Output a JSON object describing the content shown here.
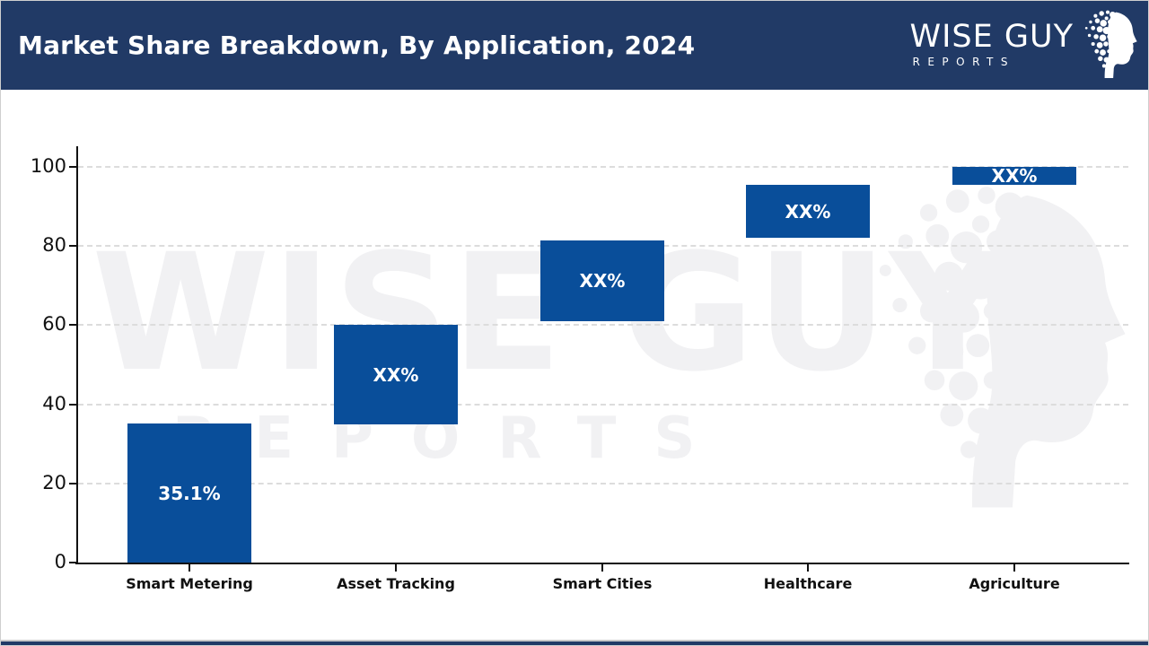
{
  "header": {
    "title": "Market Share Breakdown, By Application, 2024",
    "logo": {
      "line1": "WISE GUY",
      "line2": "REPORTS"
    }
  },
  "watermark": {
    "line1": "WISE GUY",
    "line2": "REPORTS"
  },
  "colors": {
    "header_bg": "#213a66",
    "footer_bg": "#213a66",
    "bar": "#094e9a",
    "bar_label": "#ffffff",
    "watermark": "#f1f1f3",
    "gridline": "#dcdcdc",
    "axis": "#111111"
  },
  "chart_data": {
    "type": "bar",
    "subtype": "waterfall",
    "title": "Market Share Breakdown, By Application, 2024",
    "xlabel": "",
    "ylabel": "",
    "ylim": [
      0,
      105
    ],
    "yticks": [
      0,
      20,
      40,
      60,
      80,
      100
    ],
    "grid": "horizontal-dashed",
    "legend": "none",
    "bar_color": "#094e9a",
    "categories": [
      "Smart Metering",
      "Asset Tracking",
      "Smart Cities",
      "Healthcare",
      "Agriculture"
    ],
    "segments": [
      {
        "category": "Smart Metering",
        "start": 0,
        "end": 35.1,
        "label": "35.1%"
      },
      {
        "category": "Asset Tracking",
        "start": 35,
        "end": 60,
        "label": "XX%"
      },
      {
        "category": "Smart Cities",
        "start": 61,
        "end": 81.5,
        "label": "XX%"
      },
      {
        "category": "Healthcare",
        "start": 82,
        "end": 95.5,
        "label": "XX%"
      },
      {
        "category": "Agriculture",
        "start": 95.5,
        "end": 100,
        "label": "XX%"
      }
    ]
  }
}
